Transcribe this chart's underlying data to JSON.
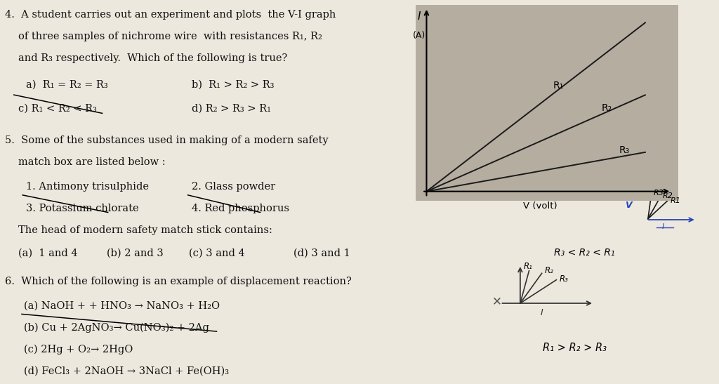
{
  "paper_color": "#ede8de",
  "graph_bg": "#b5ada0",
  "right_bg": "#e8e3d8",
  "text_color": "#111111",
  "ylabel": "I",
  "ylabel2": "(A)",
  "xlabel": "V (volt)",
  "line_slopes": [
    2.8,
    1.6,
    0.65
  ],
  "line_labels": [
    "R1",
    "R2",
    "R3"
  ],
  "font_size": 10.5
}
